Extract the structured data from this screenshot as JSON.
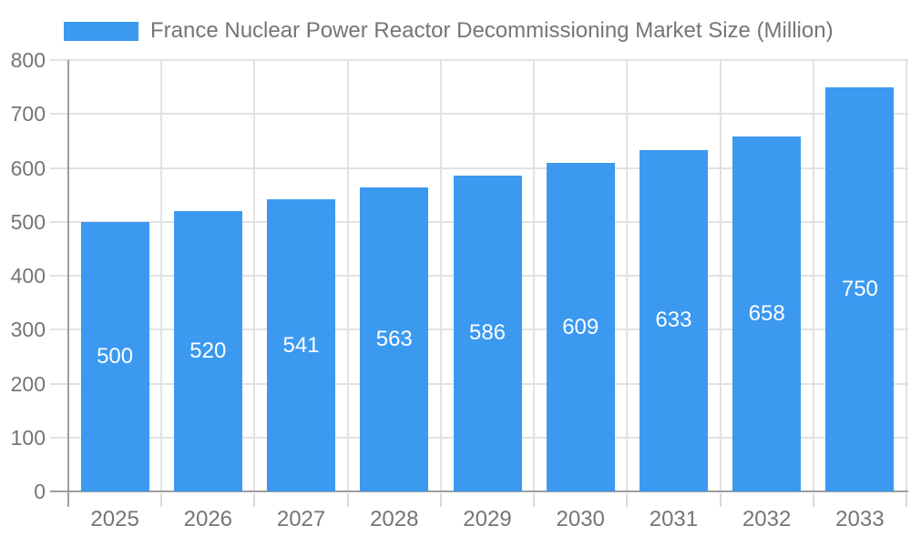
{
  "page": {
    "background": "#ffffff"
  },
  "legend": {
    "entries": [
      {
        "label": "France Nuclear Power Reactor Decommissioning Market Size (Million)",
        "swatch_color": "#3b99f0"
      }
    ],
    "position": "top"
  },
  "chart_data": {
    "type": "bar",
    "title": "France Nuclear Power Reactor Decommissioning Market Size (Million)",
    "series_name": "France Nuclear Power Reactor Decommissioning Market Size (Million)",
    "categories": [
      "2025",
      "2026",
      "2027",
      "2028",
      "2029",
      "2030",
      "2031",
      "2032",
      "2033"
    ],
    "values": [
      500,
      520,
      541,
      563,
      586,
      609,
      633,
      658,
      750
    ],
    "xlabel": "",
    "ylabel": "",
    "ylim": [
      0,
      800
    ],
    "ytick_interval": 100,
    "ytick_labels": [
      "0",
      "100",
      "200",
      "300",
      "400",
      "500",
      "600",
      "700",
      "800"
    ],
    "grid": true,
    "legend_position": "top",
    "value_label_position": "inside-center",
    "colors": {
      "bar": "#3b99f0",
      "value_label": "#ffffff",
      "axis_text": "#757575",
      "legend_text": "#757575",
      "gridline": "#e2e2e2",
      "axis_line": "#9e9e9e",
      "minor_tick": "#d9d9d9"
    }
  }
}
